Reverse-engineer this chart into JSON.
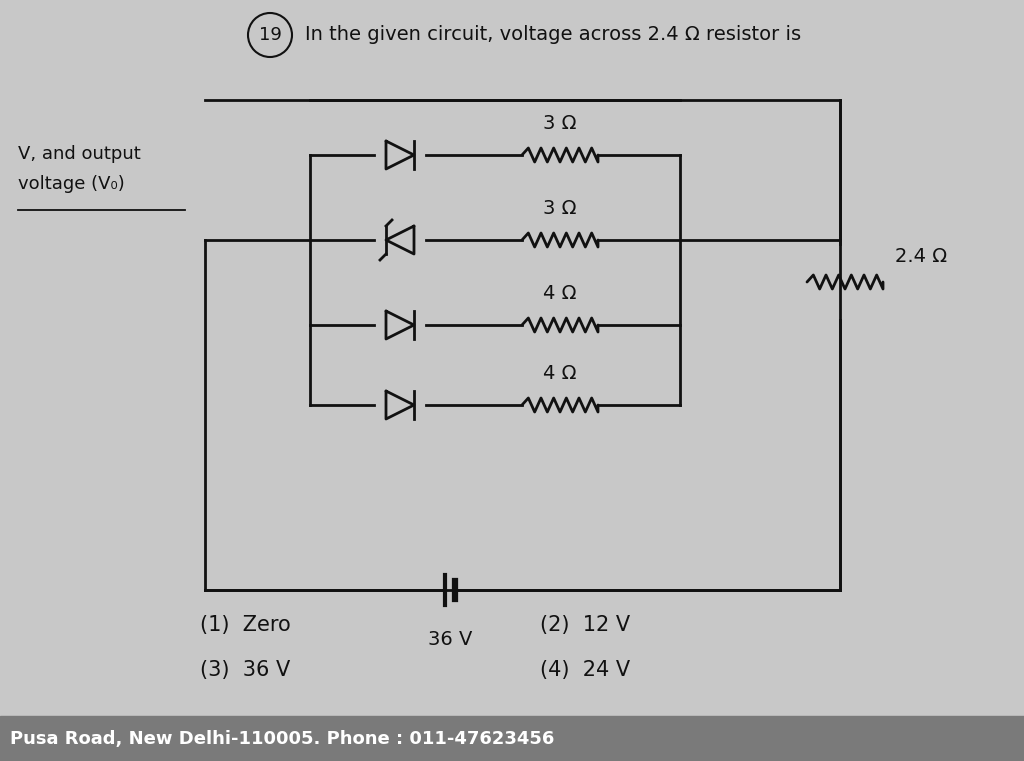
{
  "background_color": "#c8c8c8",
  "title_number": "19.",
  "title_text": "In the given circuit, voltage across 2.4 Ω resistor is",
  "title_continuation": "V, and output\nvoltage (V₀)",
  "options": [
    "(1)  Zero",
    "(2)  12 V",
    "(3)  36 V",
    "(4)  24 V"
  ],
  "footer": "Pusa Road, New Delhi-110005. Phone : 011-47623456",
  "resistor_labels": [
    "3 Ω",
    "3 Ω",
    "4 Ω",
    "4 Ω",
    "2.4 Ω"
  ],
  "battery_label": "36 V",
  "line_color": "#111111",
  "text_color": "#111111",
  "footer_bg": "#888888"
}
